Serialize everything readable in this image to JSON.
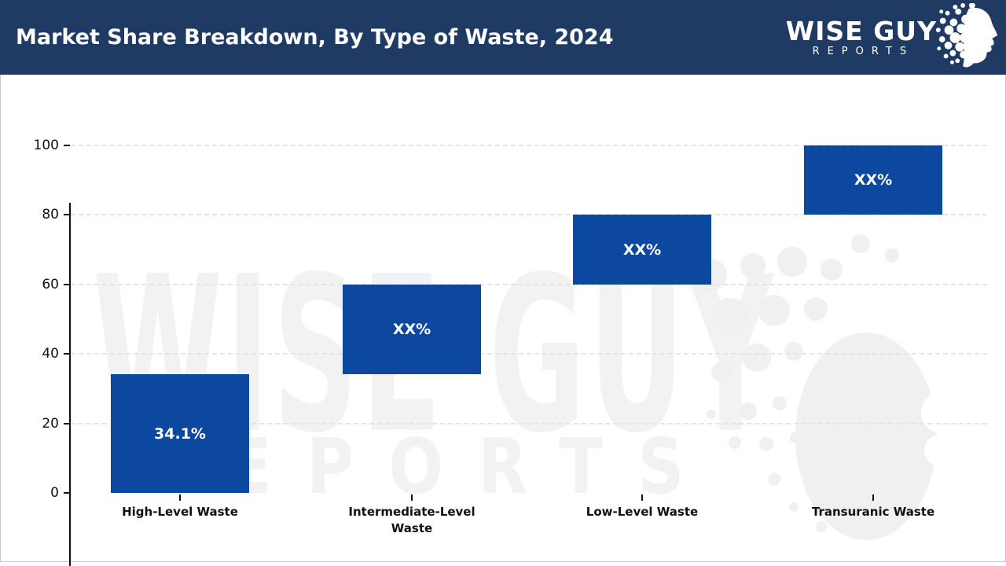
{
  "header": {
    "background": "#1f3b63",
    "title": "Market Share Breakdown, By Type of Waste, 2024",
    "title_color": "#ffffff",
    "logo": {
      "line1": "WISE GUY",
      "line2": "REPORTS"
    }
  },
  "watermark": {
    "line1": "WISE GUY",
    "line2": "REPORTS"
  },
  "chart_data": {
    "type": "bar",
    "subtype": "waterfall",
    "title": "Market Share Breakdown, By Type of Waste, 2024",
    "categories": [
      "High-Level Waste",
      "Intermediate-Level\nWaste",
      "Low-Level Waste",
      "Transuranic Waste"
    ],
    "segments": [
      {
        "category": "High-Level Waste",
        "start": 0,
        "end": 34.1,
        "label": "34.1%"
      },
      {
        "category": "Intermediate-Level Waste",
        "start": 34.1,
        "end": 60,
        "label": "XX%"
      },
      {
        "category": "Low-Level Waste",
        "start": 60,
        "end": 80,
        "label": "XX%"
      },
      {
        "category": "Transuranic Waste",
        "start": 80,
        "end": 100,
        "label": "XX%"
      }
    ],
    "ylim": [
      0,
      100
    ],
    "yticks": [
      0,
      20,
      40,
      60,
      80,
      100
    ],
    "xlabel": "",
    "ylabel": "",
    "grid": "horizontal-dashed",
    "legend": "none",
    "bar_color": "#0c47a0",
    "bar_label_color": "#ffffff",
    "axis_color": "#111111",
    "gridline_color": "#e5e5e5"
  }
}
